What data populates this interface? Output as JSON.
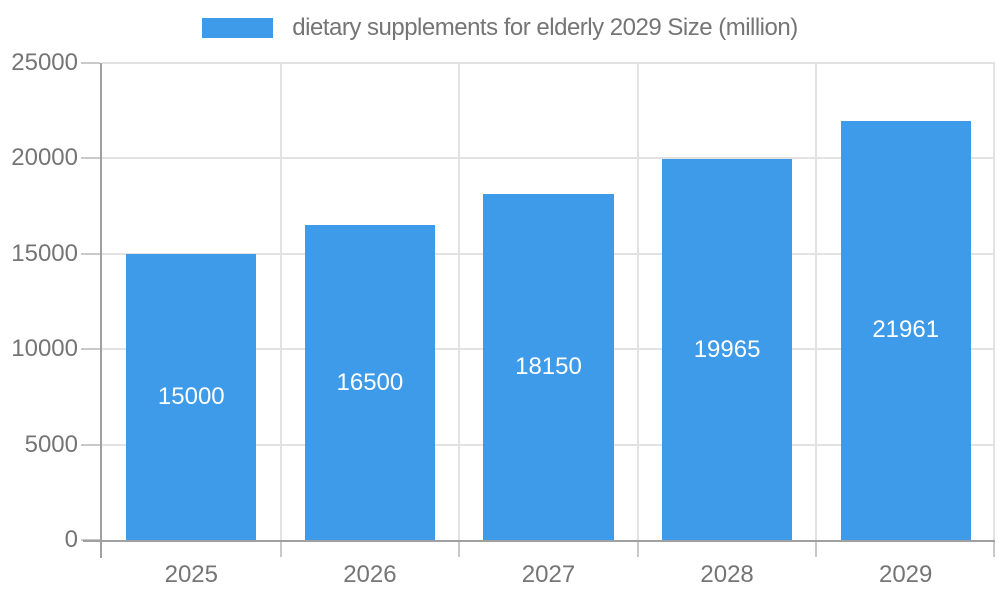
{
  "legend": {
    "label": "dietary supplements for elderly 2029 Size (million)"
  },
  "colors": {
    "bar": "#3D9BE9",
    "axis": "#a0a0a0",
    "tick": "#c9c9c9",
    "grid": "#e2e2e2",
    "label_text": "#757575",
    "value_text": "#ffffff"
  },
  "chart_data": {
    "type": "bar",
    "title": "",
    "xlabel": "",
    "ylabel": "",
    "categories": [
      "2025",
      "2026",
      "2027",
      "2028",
      "2029"
    ],
    "series": [
      {
        "name": "dietary supplements for elderly 2029 Size (million)",
        "values": [
          15000,
          16500,
          18150,
          19965,
          21961
        ]
      }
    ],
    "bar_labels": [
      15000,
      16500,
      18150,
      19965,
      21961
    ],
    "ylim": [
      0,
      25000
    ],
    "yticks": [
      0,
      5000,
      10000,
      15000,
      20000,
      25000
    ],
    "grid": true,
    "legend_position": "top"
  }
}
